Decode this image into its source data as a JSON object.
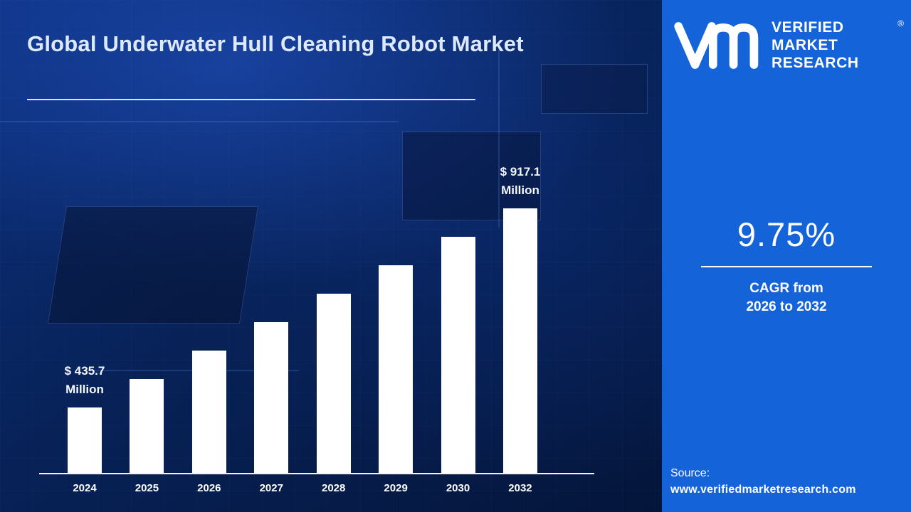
{
  "header": {
    "title": "Global Underwater Hull Cleaning Robot Market"
  },
  "logo": {
    "monogram": "VM",
    "brand_lines": [
      "VERIFIED",
      "MARKET",
      "RESEARCH"
    ],
    "registered_mark": "®"
  },
  "panel": {
    "accent_color": "#1563d8",
    "cagr_value": "9.75%",
    "cagr_caption_line1": "CAGR from",
    "cagr_caption_line2": "2026 to 2032",
    "source_label": "Source:",
    "source_url": "www.verifiedmarketresearch.com"
  },
  "chart_data": {
    "type": "bar",
    "title": "Global Underwater Hull Cleaning Robot Market",
    "categories": [
      "2024",
      "2025",
      "2026",
      "2027",
      "2028",
      "2029",
      "2030",
      "2032"
    ],
    "values": [
      435.7,
      478.2,
      524.8,
      576.0,
      632.1,
      693.8,
      761.4,
      917.1
    ],
    "unit": "USD Million",
    "bar_color": "#ffffff",
    "xlabel": "",
    "ylabel": "",
    "ylim": [
      0,
      1000
    ],
    "grid": false,
    "legend": false,
    "data_labels": {
      "first": {
        "value_text": "$ 435.7",
        "unit_text": "Million"
      },
      "last": {
        "value_text": "$ 917.1",
        "unit_text": "Million"
      }
    }
  }
}
